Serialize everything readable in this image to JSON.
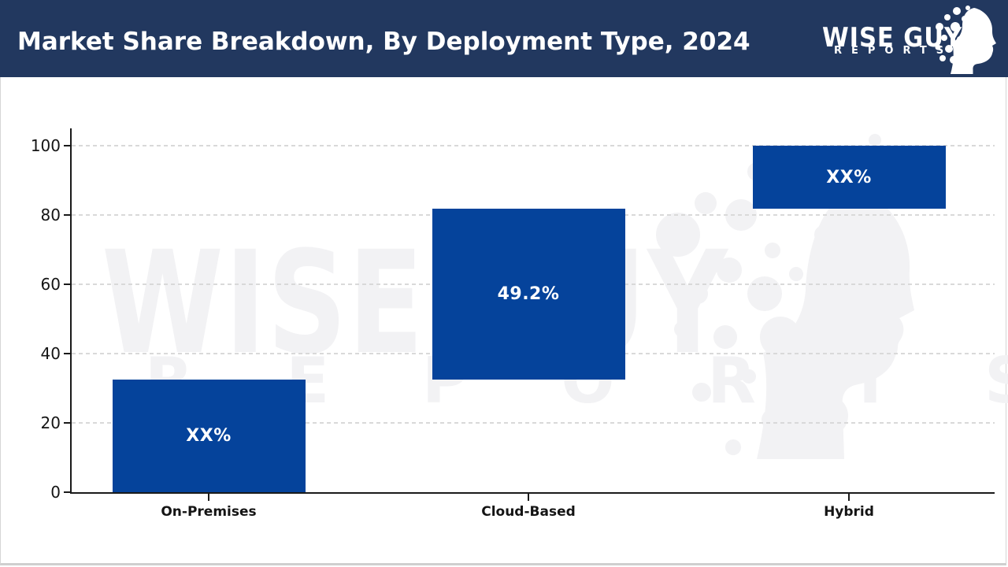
{
  "header": {
    "title": "Market Share Breakdown, By Deployment Type, 2024",
    "logo": {
      "line1": "WISE GUY",
      "line2": "REPORTS"
    }
  },
  "watermark": {
    "line1": "WISE GUY",
    "line2": "R E P O R T S"
  },
  "chart_data": {
    "type": "bar",
    "subtype": "waterfall",
    "title": "Market Share Breakdown, By Deployment Type, 2024",
    "categories": [
      "On-Premises",
      "Cloud-Based",
      "Hybrid"
    ],
    "segments": [
      {
        "category": "On-Premises",
        "start": 0,
        "end": 32.6,
        "height": 32.6,
        "label": "XX%"
      },
      {
        "category": "Cloud-Based",
        "start": 32.6,
        "end": 81.8,
        "height": 49.2,
        "label": "49.2%"
      },
      {
        "category": "Hybrid",
        "start": 81.8,
        "end": 100,
        "height": 18.2,
        "label": "XX%"
      }
    ],
    "xlabel": "",
    "ylabel": "",
    "yticks": [
      0,
      20,
      40,
      60,
      80,
      100
    ],
    "ylim": [
      0,
      105
    ],
    "grid": "horizontal-dashed",
    "legend": "none",
    "bar_color": "#05439b",
    "grid_color": "#d9d9d9",
    "axis_color": "#1a1a1a",
    "header_color": "#22385f",
    "watermark_color": "#f2f2f4"
  }
}
